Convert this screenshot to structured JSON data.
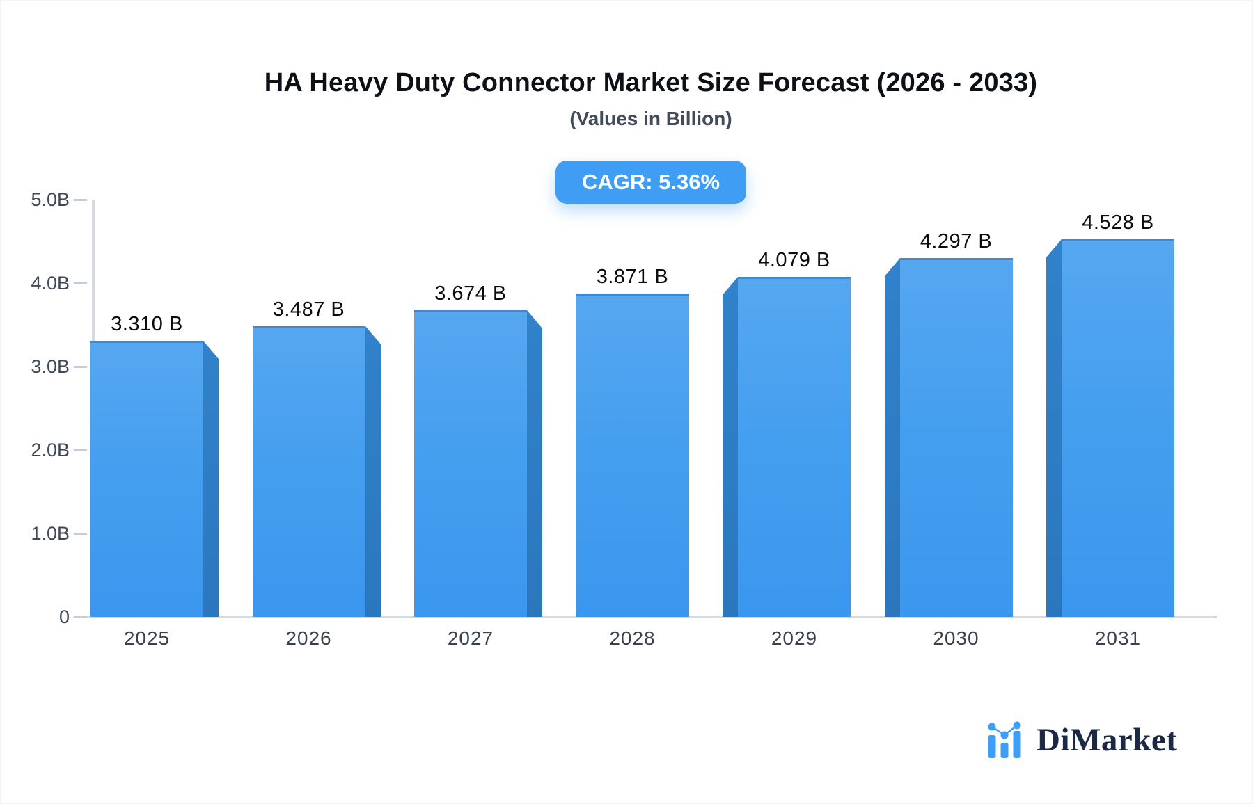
{
  "header": {
    "title": "HA Heavy Duty Connector Market Size Forecast (2026 - 2033)",
    "subtitle": "(Values in Billion)",
    "cagr_badge": "CAGR: 5.36%"
  },
  "chart_data": {
    "type": "bar",
    "title": "HA Heavy Duty Connector Market Size Forecast (2026 - 2033)",
    "subtitle": "(Values in Billion)",
    "annotation": "CAGR: 5.36%",
    "categories": [
      "2025",
      "2026",
      "2027",
      "2028",
      "2029",
      "2030",
      "2031"
    ],
    "values": [
      3.31,
      3.487,
      3.674,
      3.871,
      4.079,
      4.297,
      4.528
    ],
    "value_labels": [
      "3.310 B",
      "3.487 B",
      "3.674 B",
      "3.871 B",
      "4.079 B",
      "4.297 B",
      "4.528 B"
    ],
    "unit": "Billion",
    "xlabel": "",
    "ylabel": "",
    "ylim": [
      0,
      5
    ],
    "yticks": [
      {
        "label": "5.0B",
        "value": 5
      },
      {
        "label": "4.0B",
        "value": 4
      },
      {
        "label": "3.0B",
        "value": 3
      },
      {
        "label": "2.0B",
        "value": 2
      },
      {
        "label": "1.0B",
        "value": 1
      },
      {
        "label": "0",
        "value": 0
      }
    ],
    "grid": false,
    "legend_position": "none",
    "bar_style": "3d-center-perspective",
    "side_panel_position": [
      "right",
      "right",
      "right",
      "none",
      "left",
      "left",
      "left"
    ],
    "bar_face_color": "#459fef",
    "bar_side_color": "#2e7cc3"
  },
  "branding": {
    "logo_text": "DiMarket",
    "logo_icon": "mini-bar-line-chart-icon",
    "logo_text_color": "#1b2946",
    "logo_icon_color": "#3e9df5"
  },
  "colors": {
    "badge_bg": "#3f9df3",
    "badge_text": "#ffffff",
    "axis_line": "#d6dade",
    "tick_dash": "#c7ccd4",
    "tick_text": "#3e4856",
    "category_text": "#39414f",
    "value_text": "#0a0c10",
    "background": "#ffffff"
  }
}
